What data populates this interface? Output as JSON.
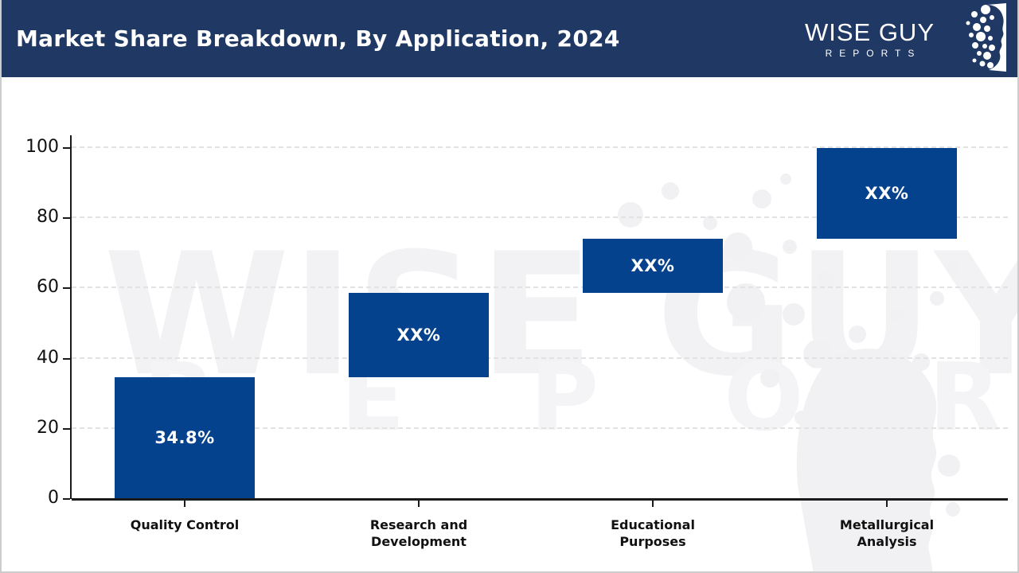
{
  "header": {
    "title": "Market Share Breakdown, By Application, 2024",
    "logo_line1": "WISE GUY",
    "logo_line2": "REPORTS"
  },
  "watermark": {
    "word": "WISE GUY",
    "reports": "R E P O R T S"
  },
  "colors": {
    "header_bg": "#1f3864",
    "bar": "#05428e",
    "grid": "#e2e2e2",
    "axis": "#1a1a1a",
    "bar_label": "#ffffff",
    "watermark": "#f2f2f4"
  },
  "chart_data": {
    "type": "bar",
    "subtype": "waterfall",
    "title": "Market Share Breakdown, By Application, 2024",
    "categories": [
      "Quality Control",
      "Research and\nDevelopment",
      "Educational\nPurposes",
      "Metallurgical\nAnalysis"
    ],
    "segments": [
      {
        "category": "Quality Control",
        "start": 0,
        "end": 34.8,
        "label": "34.8%"
      },
      {
        "category": "Research and Development",
        "start": 34.8,
        "end": 58.8,
        "label": "XX%"
      },
      {
        "category": "Educational Purposes",
        "start": 58.8,
        "end": 74.2,
        "label": "XX%"
      },
      {
        "category": "Metallurgical Analysis",
        "start": 74.2,
        "end": 100,
        "label": "XX%"
      }
    ],
    "xlabel": "",
    "ylabel": "",
    "y_ticks": [
      0,
      20,
      40,
      60,
      80,
      100
    ],
    "ylim": [
      0,
      100
    ],
    "grid": "horizontal-dashed",
    "legend": null
  }
}
